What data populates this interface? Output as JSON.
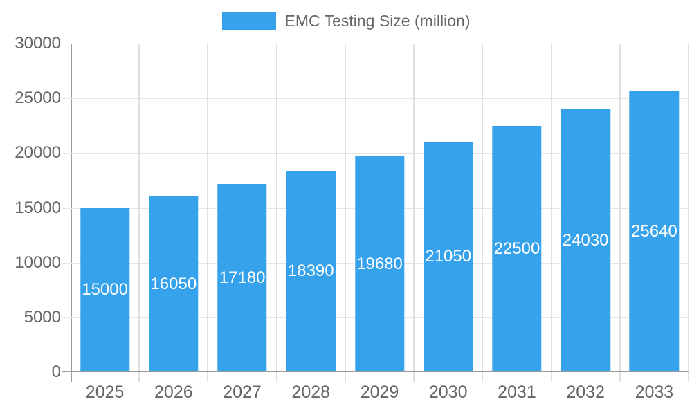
{
  "legend": {
    "label": "EMC Testing Size (million)"
  },
  "colors": {
    "bar": "#36A2EB",
    "bar_label": "#ffffff",
    "axis_text": "#666666",
    "axis_line": "#9b9b9b",
    "grid_horizontal": "#e6e6e6",
    "grid_vertical": "#e0e0e0"
  },
  "chart_data": {
    "type": "bar",
    "title": "EMC Testing Size (million)",
    "categories": [
      "2025",
      "2026",
      "2027",
      "2028",
      "2029",
      "2030",
      "2031",
      "2032",
      "2033"
    ],
    "values": [
      15000,
      16050,
      17180,
      18390,
      19680,
      21050,
      22500,
      24030,
      25640
    ],
    "xlabel": "",
    "ylabel": "",
    "ylim": [
      0,
      30000
    ],
    "ytick_step": 5000,
    "yticks": [
      0,
      5000,
      10000,
      15000,
      20000,
      25000,
      30000
    ],
    "grid": true,
    "legend_position": "top",
    "bar_label_position": "center",
    "bar_slot_fill_ratio": 0.72
  }
}
